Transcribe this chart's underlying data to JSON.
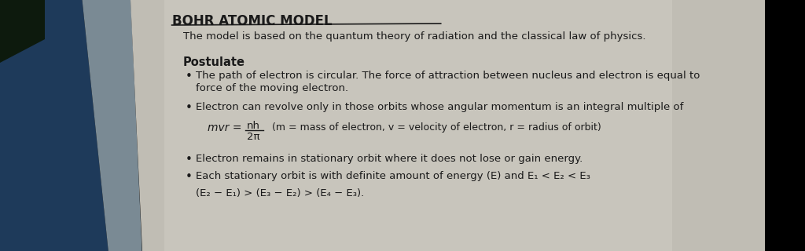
{
  "bg_left_color": "#2a4a6a",
  "bg_paper_color": "#b8b8b0",
  "bg_right_color": "#a0a098",
  "title": "BOHR ATOMIC MODEL",
  "subtitle": "The model is based on the quantum theory of radiation and the classical law of physics.",
  "postulate_label": "Postulate",
  "bullet1_line1": "The path of electron is circular. The force of attraction between nucleus and electron is equal to",
  "bullet1_line2": "force of the moving electron.",
  "bullet2_line1": "Electron can revolve only in those orbits whose angular momentum is an integral multiple of",
  "formula_left": "mvr = ",
  "formula_num": "nh",
  "formula_den": "2π",
  "formula_right": "  (m = mass of electron, v = velocity of electron, r = radius of orbit)",
  "bullet3": "Electron remains in stationary orbit where it does not lose or gain energy.",
  "bullet4": "Each stationary orbit is with definite amount of energy (E) and E₁ < E₂ < E₃",
  "bullet5": "(E₂ − E₁) > (E₃ − E₂) > (E₄ − E₃).",
  "text_color": "#1a1a1a",
  "title_color": "#111111"
}
